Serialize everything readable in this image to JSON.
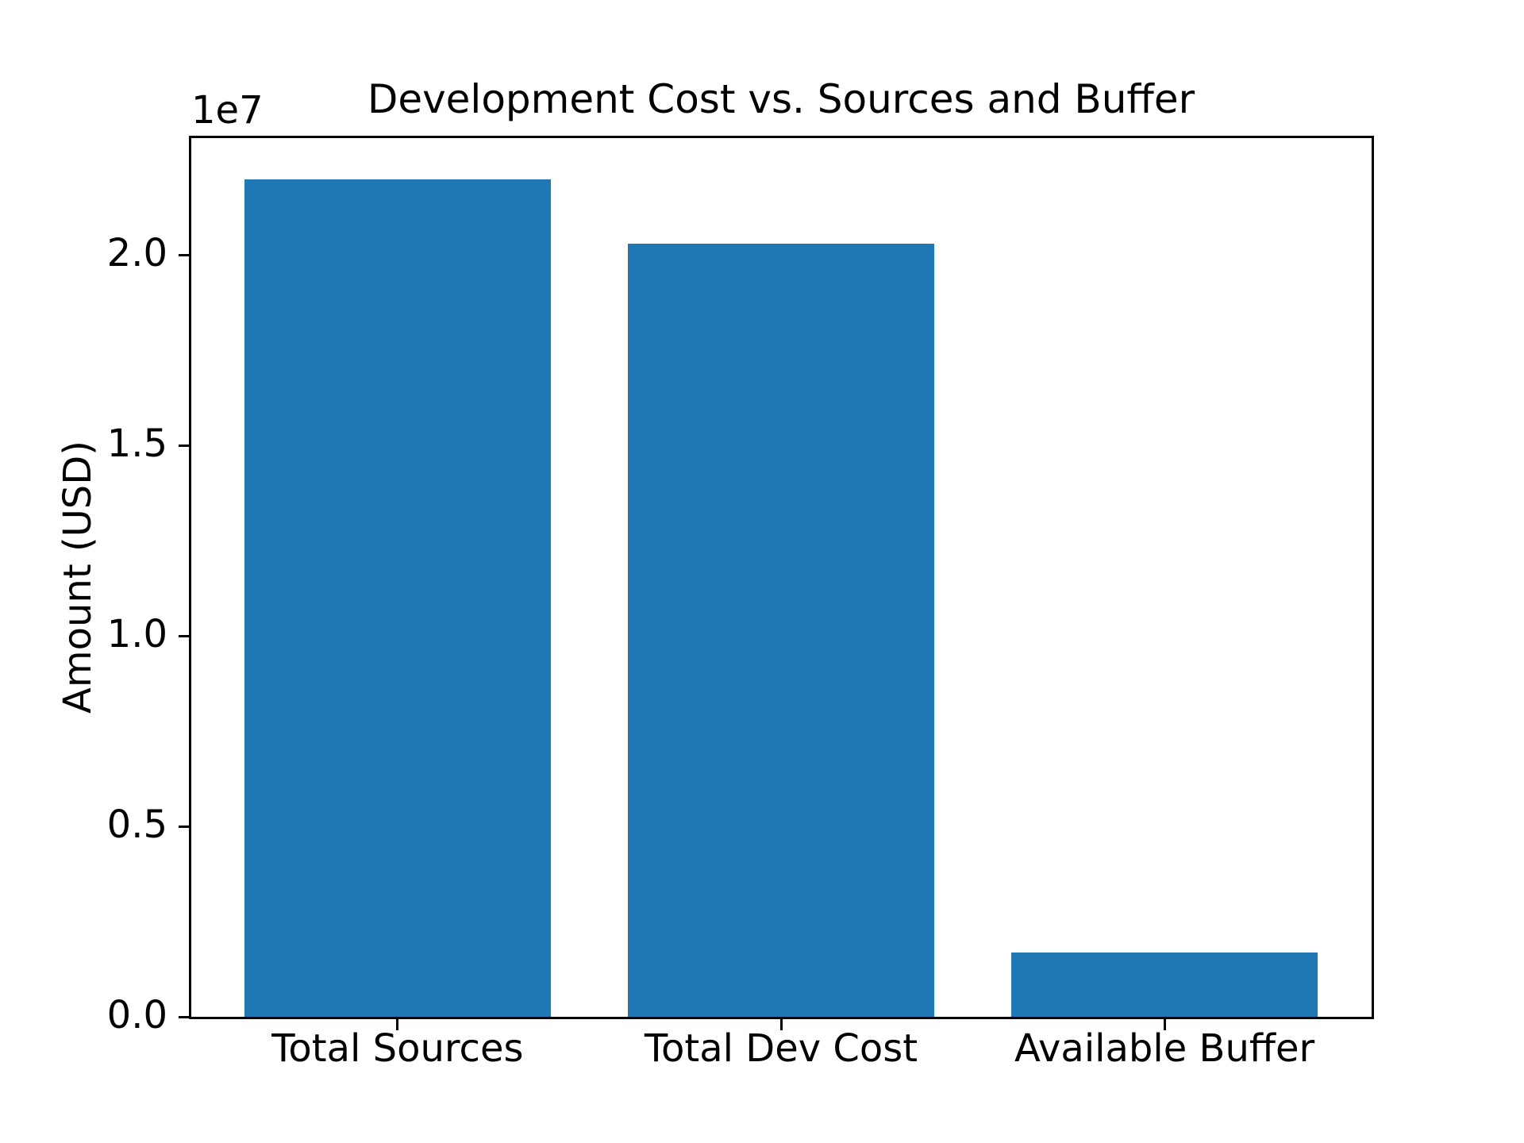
{
  "chart_data": {
    "type": "bar",
    "title": "Development Cost vs. Sources and Buffer",
    "xlabel": "",
    "ylabel": "Amount (USD)",
    "y_offset_text": "1e7",
    "categories": [
      "Total Sources",
      "Total Dev Cost",
      "Available Buffer"
    ],
    "values": [
      22000000,
      20300000,
      1700000
    ],
    "bar_color": "#1f77b4",
    "axis_color": "#000000",
    "background_color": "#ffffff",
    "ylim": [
      0,
      23100000
    ],
    "yticks": [
      {
        "value": 0,
        "label": "0.0"
      },
      {
        "value": 5000000,
        "label": "0.5"
      },
      {
        "value": 10000000,
        "label": "1.0"
      },
      {
        "value": 15000000,
        "label": "1.5"
      },
      {
        "value": 20000000,
        "label": "2.0"
      }
    ],
    "grid": false,
    "legend": null
  }
}
